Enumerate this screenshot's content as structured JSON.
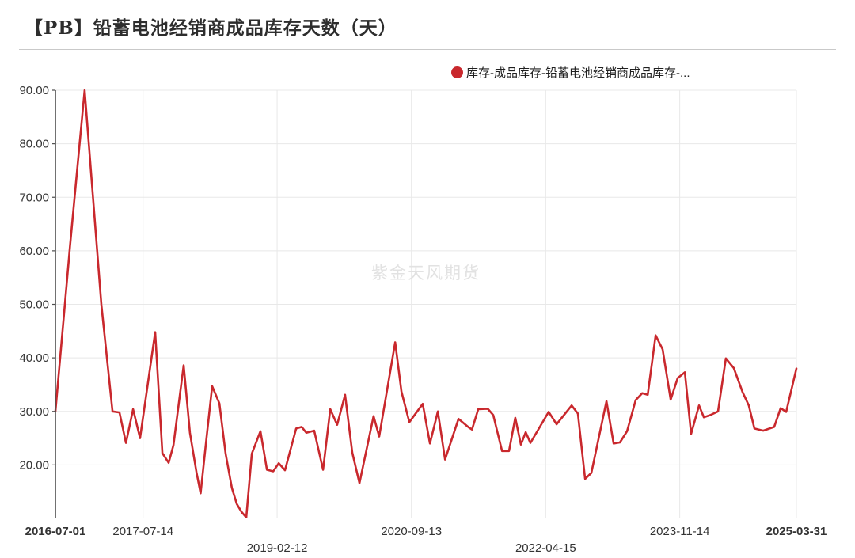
{
  "title": "【PB】铅蓄电池经销商成品库存天数（天）",
  "watermark": "紫金天风期货",
  "legend": {
    "label": "库存-成品库存-铅蓄电池经销商成品库存-...",
    "color": "#c9282d"
  },
  "colors": {
    "series": "#c9282d",
    "grid": "#e8e8e8",
    "axis": "#4d4d4d",
    "tick_text": "#333333",
    "watermark": "#e2e2e2"
  },
  "chart_data": {
    "type": "line",
    "title": "【PB】铅蓄电池经销商成品库存天数（天）",
    "legend_position": "top-right",
    "grid": true,
    "y_axis": {
      "min": 10,
      "max": 90,
      "ticks": [
        20,
        30,
        40,
        50,
        60,
        70,
        80,
        90
      ],
      "tick_format": "two-decimals"
    },
    "x_axis": {
      "start": "2016-07-01",
      "end": "2025-03-31",
      "ticks": [
        {
          "date": "2016-07-01",
          "label": "2016-07-01",
          "row": 1,
          "bold": true
        },
        {
          "date": "2017-07-14",
          "label": "2017-07-14",
          "row": 1,
          "bold": false
        },
        {
          "date": "2019-02-12",
          "label": "2019-02-12",
          "row": 2,
          "bold": false
        },
        {
          "date": "2020-09-13",
          "label": "2020-09-13",
          "row": 1,
          "bold": false
        },
        {
          "date": "2022-04-15",
          "label": "2022-04-15",
          "row": 2,
          "bold": false
        },
        {
          "date": "2023-11-14",
          "label": "2023-11-14",
          "row": 1,
          "bold": false
        },
        {
          "date": "2025-03-31",
          "label": "2025-03-31",
          "row": 1,
          "bold": true
        }
      ]
    },
    "series": [
      {
        "name": "库存-成品库存-铅蓄电池经销商成品库存-...",
        "color": "#c9282d",
        "points": [
          [
            "2016-07-01",
            30.0
          ],
          [
            "2016-09-02",
            61.0
          ],
          [
            "2016-11-04",
            90.0
          ],
          [
            "2017-01-15",
            50.0
          ],
          [
            "2017-03-04",
            30.0
          ],
          [
            "2017-04-03",
            29.8
          ],
          [
            "2017-05-01",
            24.1
          ],
          [
            "2017-06-01",
            30.4
          ],
          [
            "2017-07-01",
            25.0
          ],
          [
            "2017-09-04",
            44.8
          ],
          [
            "2017-10-05",
            22.2
          ],
          [
            "2017-11-01",
            20.4
          ],
          [
            "2017-11-22",
            23.7
          ],
          [
            "2018-01-05",
            38.6
          ],
          [
            "2018-02-01",
            26.0
          ],
          [
            "2018-03-01",
            18.7
          ],
          [
            "2018-03-19",
            14.7
          ],
          [
            "2018-04-12",
            24.4
          ],
          [
            "2018-05-08",
            34.7
          ],
          [
            "2018-06-08",
            31.5
          ],
          [
            "2018-07-05",
            22.1
          ],
          [
            "2018-08-01",
            15.7
          ],
          [
            "2018-08-22",
            12.7
          ],
          [
            "2018-09-12",
            11.2
          ],
          [
            "2018-10-02",
            10.2
          ],
          [
            "2018-10-26",
            22.1
          ],
          [
            "2018-12-02",
            26.3
          ],
          [
            "2018-12-30",
            19.1
          ],
          [
            "2019-01-26",
            18.8
          ],
          [
            "2019-02-19",
            20.3
          ],
          [
            "2019-03-18",
            19.0
          ],
          [
            "2019-05-05",
            26.8
          ],
          [
            "2019-05-29",
            27.1
          ],
          [
            "2019-06-18",
            26.0
          ],
          [
            "2019-07-22",
            26.4
          ],
          [
            "2019-08-29",
            19.1
          ],
          [
            "2019-09-29",
            30.4
          ],
          [
            "2019-10-29",
            27.5
          ],
          [
            "2019-12-02",
            33.1
          ],
          [
            "2020-01-02",
            22.3
          ],
          [
            "2020-02-02",
            16.6
          ],
          [
            "2020-04-03",
            29.1
          ],
          [
            "2020-04-27",
            25.3
          ],
          [
            "2020-07-05",
            42.9
          ],
          [
            "2020-08-01",
            33.7
          ],
          [
            "2020-09-04",
            28.0
          ],
          [
            "2020-11-01",
            31.4
          ],
          [
            "2020-12-02",
            24.0
          ],
          [
            "2021-01-05",
            30.0
          ],
          [
            "2021-02-05",
            21.0
          ],
          [
            "2021-04-04",
            28.6
          ],
          [
            "2021-05-18",
            27.0
          ],
          [
            "2021-06-01",
            26.6
          ],
          [
            "2021-06-28",
            30.4
          ],
          [
            "2021-08-08",
            30.5
          ],
          [
            "2021-09-01",
            29.3
          ],
          [
            "2021-10-09",
            22.6
          ],
          [
            "2021-11-08",
            22.6
          ],
          [
            "2021-12-05",
            28.8
          ],
          [
            "2021-12-29",
            23.8
          ],
          [
            "2022-01-19",
            26.1
          ],
          [
            "2022-02-08",
            24.1
          ],
          [
            "2022-04-28",
            29.9
          ],
          [
            "2022-06-01",
            27.6
          ],
          [
            "2022-08-05",
            31.1
          ],
          [
            "2022-09-01",
            29.6
          ],
          [
            "2022-10-02",
            17.4
          ],
          [
            "2022-10-29",
            18.5
          ],
          [
            "2023-01-02",
            31.9
          ],
          [
            "2023-02-02",
            24.0
          ],
          [
            "2023-03-01",
            24.2
          ],
          [
            "2023-04-01",
            26.3
          ],
          [
            "2023-05-08",
            32.1
          ],
          [
            "2023-06-05",
            33.4
          ],
          [
            "2023-06-29",
            33.1
          ],
          [
            "2023-08-02",
            44.2
          ],
          [
            "2023-09-01",
            41.6
          ],
          [
            "2023-10-06",
            32.2
          ],
          [
            "2023-11-05",
            36.2
          ],
          [
            "2023-12-06",
            37.3
          ],
          [
            "2024-01-02",
            25.8
          ],
          [
            "2024-02-05",
            31.1
          ],
          [
            "2024-02-26",
            28.9
          ],
          [
            "2024-03-24",
            29.3
          ],
          [
            "2024-04-27",
            30.0
          ],
          [
            "2024-05-31",
            39.9
          ],
          [
            "2024-07-04",
            38.1
          ],
          [
            "2024-08-11",
            33.6
          ],
          [
            "2024-09-07",
            31.1
          ],
          [
            "2024-10-01",
            26.8
          ],
          [
            "2024-11-08",
            26.4
          ],
          [
            "2024-12-25",
            27.1
          ],
          [
            "2025-01-22",
            30.6
          ],
          [
            "2025-02-15",
            29.9
          ],
          [
            "2025-03-31",
            38.0
          ]
        ]
      }
    ]
  }
}
